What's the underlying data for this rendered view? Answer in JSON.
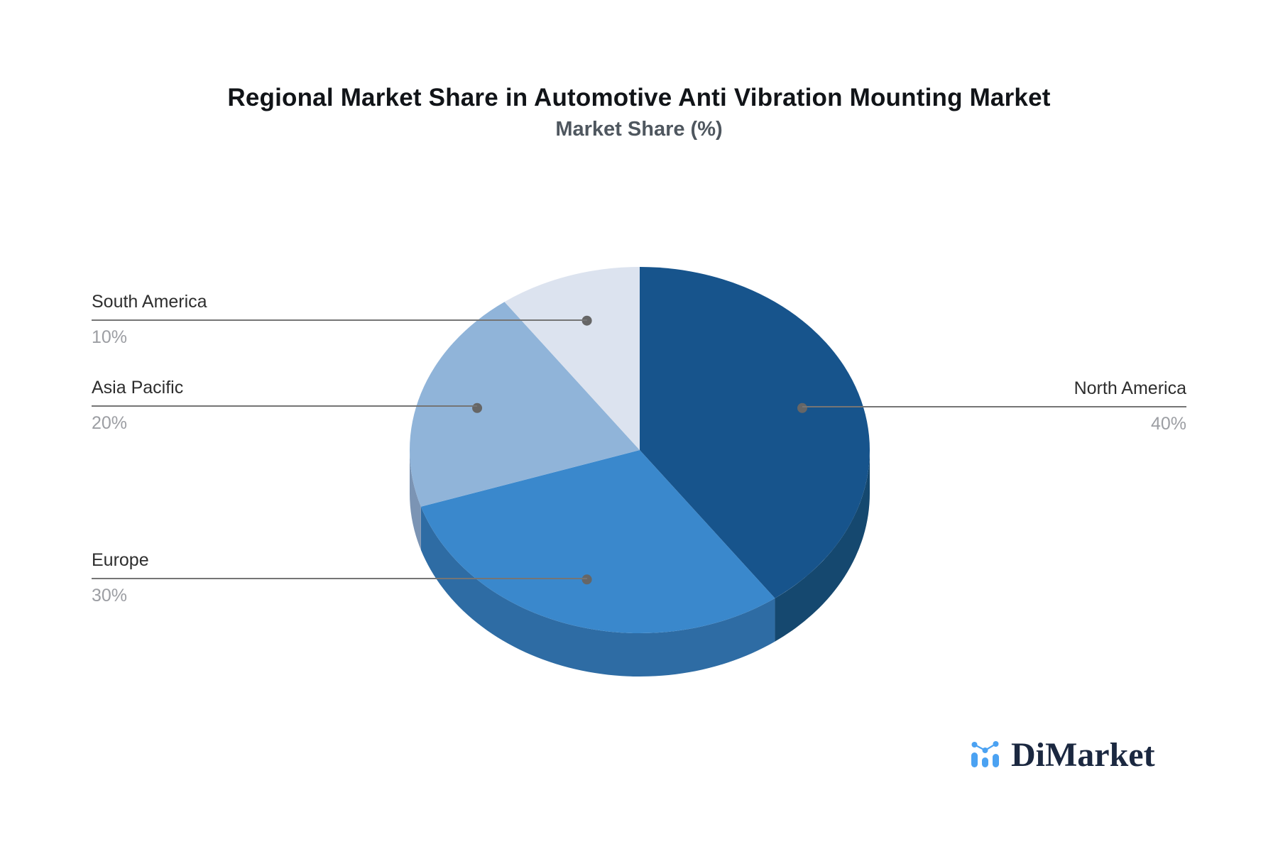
{
  "title": "Regional Market Share in Automotive Anti Vibration Mounting Market",
  "subtitle": "Market Share (%)",
  "logo": {
    "text": "DiMarket",
    "icon": "bar-chart-sparkline-icon",
    "icon_color": "#4ba2f2",
    "text_color": "#1b2840"
  },
  "chart_data": {
    "type": "pie",
    "style": "3d",
    "title": "Regional Market Share in Automotive Anti Vibration Mounting Market",
    "subtitle": "Market Share (%)",
    "labels": [
      "North America",
      "Europe",
      "Asia Pacific",
      "South America"
    ],
    "values": [
      40,
      30,
      20,
      10
    ],
    "value_labels": [
      "40%",
      "30%",
      "20%",
      "10%"
    ],
    "colors": [
      "#17548c",
      "#3a88cc",
      "#90b4d9",
      "#dce3ef"
    ],
    "side_colors": [
      "#15486f",
      "#2e6ca4",
      "#7b94b4",
      "#b9c6da"
    ],
    "start_angle": "12-o-clock",
    "direction": "clockwise",
    "legend_position": "callout-lines",
    "callout": {
      "line_color": "#757575",
      "dot_color": "#666666",
      "label_color": "#2e2e2e",
      "value_color": "#9c9ea3"
    },
    "background": "#ffffff"
  }
}
